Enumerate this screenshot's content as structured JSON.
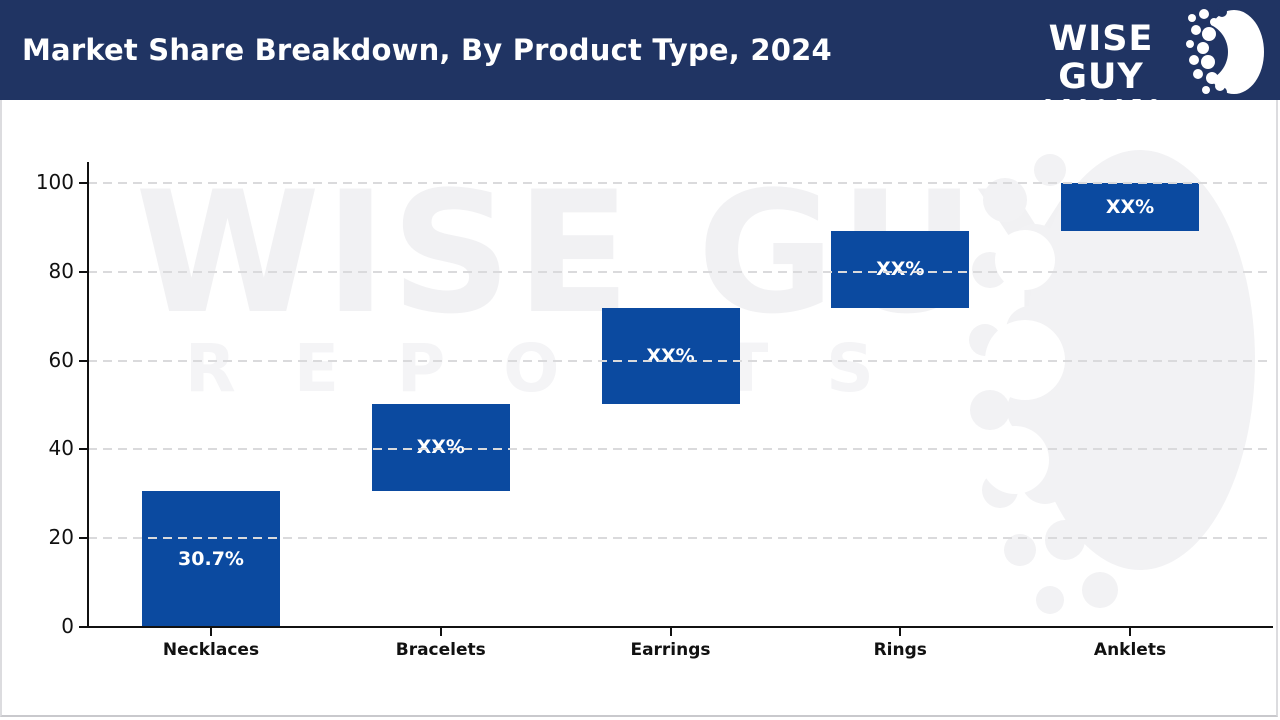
{
  "header": {
    "title": "Market Share Breakdown, By Product Type, 2024",
    "logo": {
      "line1": "WISE GUY",
      "line2": "REPORTS"
    }
  },
  "watermark": {
    "line1": "WISE GUY",
    "line2": "REPORTS"
  },
  "colors": {
    "header_bg": "#203463",
    "bar": "#0b4aa0",
    "grid": "#dadadc",
    "axis": "#111111",
    "bar_label": "#ffffff",
    "watermark": "#f1f1f3"
  },
  "chart_data": {
    "type": "bar",
    "subtype": "waterfall",
    "title": "Market Share Breakdown, By Product Type, 2024",
    "categories": [
      "Necklaces",
      "Bracelets",
      "Earrings",
      "Rings",
      "Anklets"
    ],
    "segments": [
      [
        0,
        30.7
      ],
      [
        30.7,
        50.3
      ],
      [
        50.3,
        71.9
      ],
      [
        71.9,
        89.2
      ],
      [
        89.2,
        100
      ]
    ],
    "bar_labels": [
      "30.7%",
      "XX%",
      "XX%",
      "XX%",
      "XX%"
    ],
    "yticks": [
      0,
      20,
      40,
      60,
      80,
      100
    ],
    "ylim": [
      0,
      105
    ],
    "grid": "dashed-horizontal",
    "legend": "none"
  }
}
